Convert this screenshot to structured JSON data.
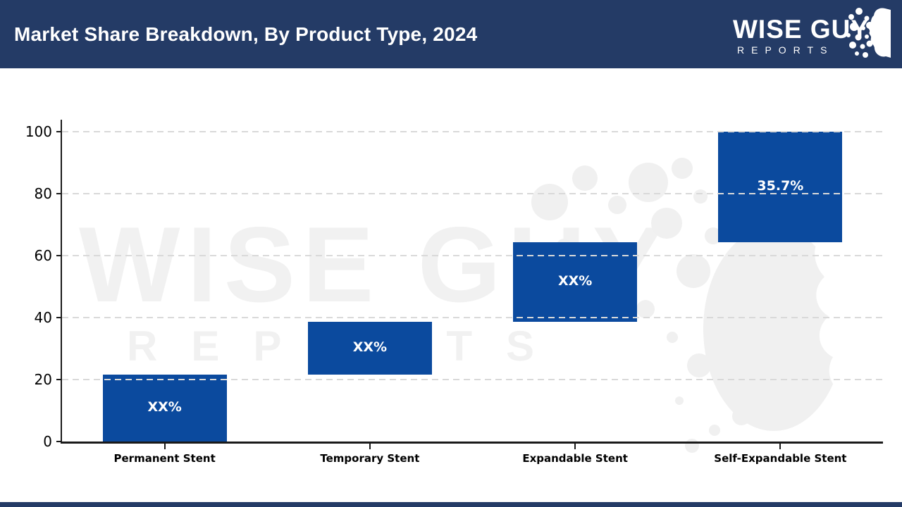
{
  "header": {
    "title": "Market Share Breakdown, By Product Type, 2024"
  },
  "logo": {
    "line1": "WISE GUY",
    "line2": "REPORTS"
  },
  "watermark": {
    "line1": "WISE GUY",
    "line2": "REPORTS"
  },
  "chart_data": {
    "type": "bar",
    "subtype": "waterfall",
    "title": "Market Share Breakdown, By Product Type, 2024",
    "categories": [
      "Permanent Stent",
      "Temporary Stent",
      "Expandable Stent",
      "Self-Expandable Stent"
    ],
    "bars": [
      {
        "category": "Permanent Stent",
        "start": 0,
        "end": 21.5,
        "label": "XX%"
      },
      {
        "category": "Temporary Stent",
        "start": 21.5,
        "end": 38.6,
        "label": "XX%"
      },
      {
        "category": "Expandable Stent",
        "start": 38.6,
        "end": 64.3,
        "label": "XX%"
      },
      {
        "category": "Self-Expandable Stent",
        "start": 64.3,
        "end": 100,
        "label": "35.7%"
      }
    ],
    "ylim": [
      0,
      100
    ],
    "yticks": [
      0,
      20,
      40,
      60,
      80,
      100
    ],
    "bar_color": "#0b4a9e",
    "grid": "horizontal-dashed",
    "legend": "none"
  }
}
